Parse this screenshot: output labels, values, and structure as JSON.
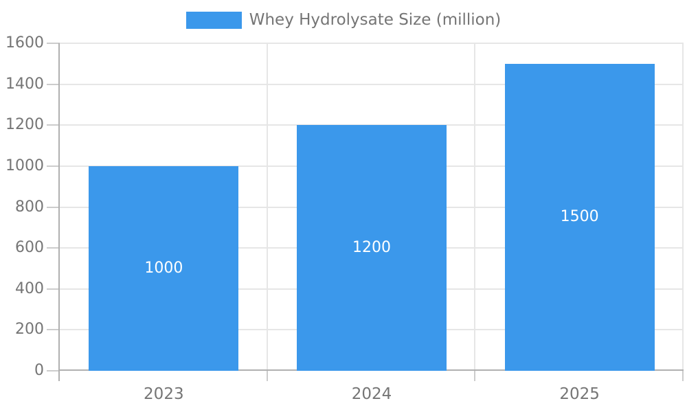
{
  "chart_data": {
    "type": "bar",
    "title": "Whey Hydrolysate Size (million)",
    "categories": [
      "2023",
      "2024",
      "2025"
    ],
    "series": [
      {
        "name": "Whey Hydrolysate Size (million)",
        "values": [
          1000,
          1200,
          1500
        ]
      }
    ],
    "value_labels": [
      "1000",
      "1200",
      "1500"
    ],
    "ylabel": "",
    "xlabel": "",
    "ylim": [
      0,
      1600
    ],
    "ytick_step": 200,
    "ytick_labels": [
      "0",
      "200",
      "400",
      "600",
      "800",
      "1000",
      "1200",
      "1400",
      "1600"
    ],
    "grid": true,
    "legend_position": "top",
    "colors": {
      "bar": "#3B98EB",
      "grid_line": "#e6e6e6",
      "axis_line": "#b0b0b0",
      "tick_mark": "#cccccc",
      "axis_label": "#757575",
      "legend_text": "#757575",
      "value_label": "#ffffff",
      "background": "#ffffff"
    }
  }
}
